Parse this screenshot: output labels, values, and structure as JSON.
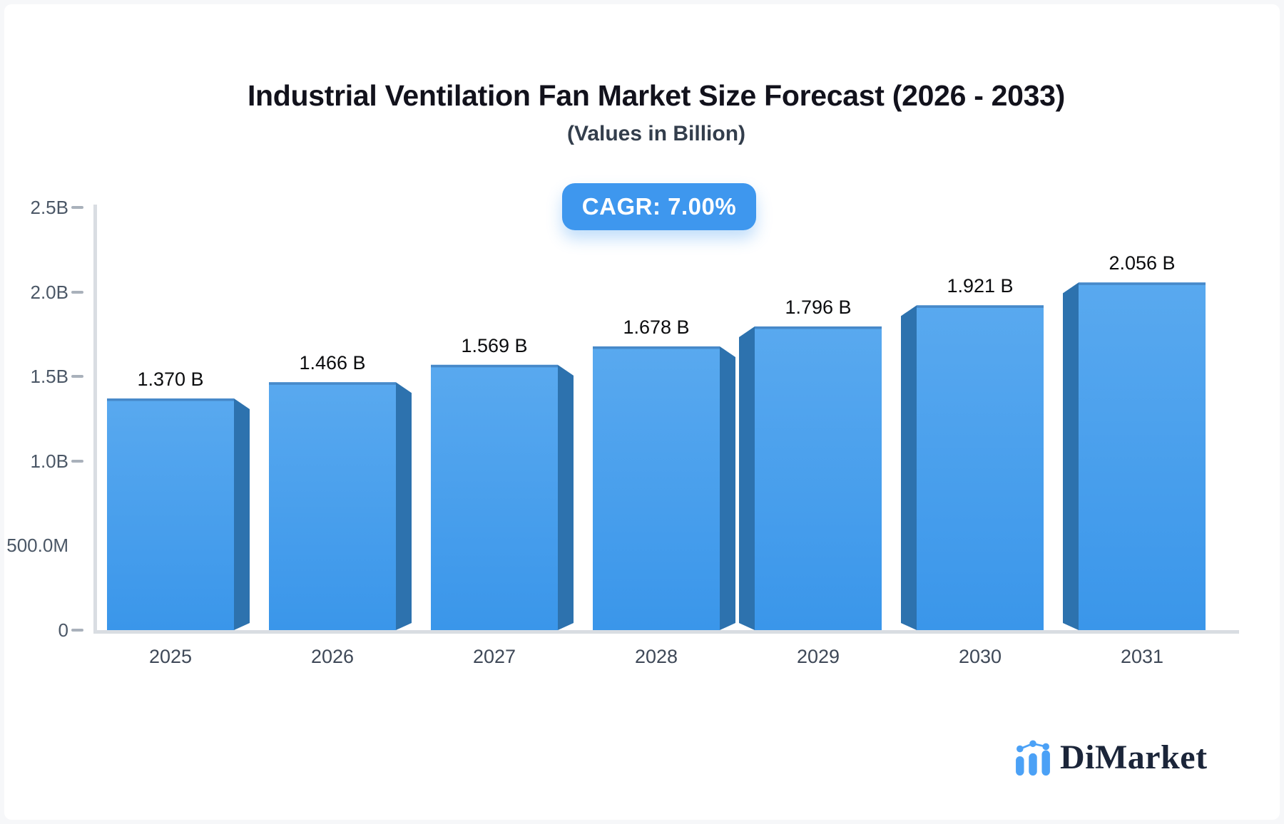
{
  "header": {
    "title": "Industrial Ventilation Fan Market Size Forecast (2026 - 2033)",
    "subtitle": "(Values in Billion)"
  },
  "badge": {
    "label": "CAGR: 7.00%",
    "bg_color": "#3e97ee",
    "text_color": "#ffffff"
  },
  "chart_data": {
    "type": "bar",
    "title": "Industrial Ventilation Fan Market Size Forecast (2026 - 2033)",
    "subtitle": "(Values in Billion)",
    "cagr_label": "CAGR: 7.00%",
    "categories": [
      "2025",
      "2026",
      "2027",
      "2028",
      "2029",
      "2030",
      "2031"
    ],
    "values": [
      1.37,
      1.466,
      1.569,
      1.678,
      1.796,
      1.921,
      2.056
    ],
    "value_labels": [
      "1.370 B",
      "1.466 B",
      "1.569 B",
      "1.678 B",
      "1.796 B",
      "1.921 B",
      "2.056 B"
    ],
    "ylim": [
      0,
      2.5
    ],
    "yticks": [
      {
        "label": "2.5B",
        "value": 2.5,
        "dash": true
      },
      {
        "label": "2.0B",
        "value": 2.0,
        "dash": true
      },
      {
        "label": "1.5B",
        "value": 1.5,
        "dash": true
      },
      {
        "label": "1.0B",
        "value": 1.0,
        "dash": true
      },
      {
        "label": "500.0M",
        "value": 0.5,
        "dash": false
      },
      {
        "label": "0",
        "value": 0.0,
        "dash": true
      }
    ],
    "grid": false,
    "legend": false,
    "bar_color_top": "#59a9ef",
    "bar_color_bottom": "#3a96ea",
    "bar_side_color": "#2d72ae",
    "bar_top_edge_color": "#4789c9",
    "axis_color": "#d9dde2"
  },
  "logo": {
    "text": "DiMarket",
    "icon": "mini-bar-chart-logo-icon",
    "icon_color": "#4ba1f6",
    "text_color": "#1b2539"
  }
}
